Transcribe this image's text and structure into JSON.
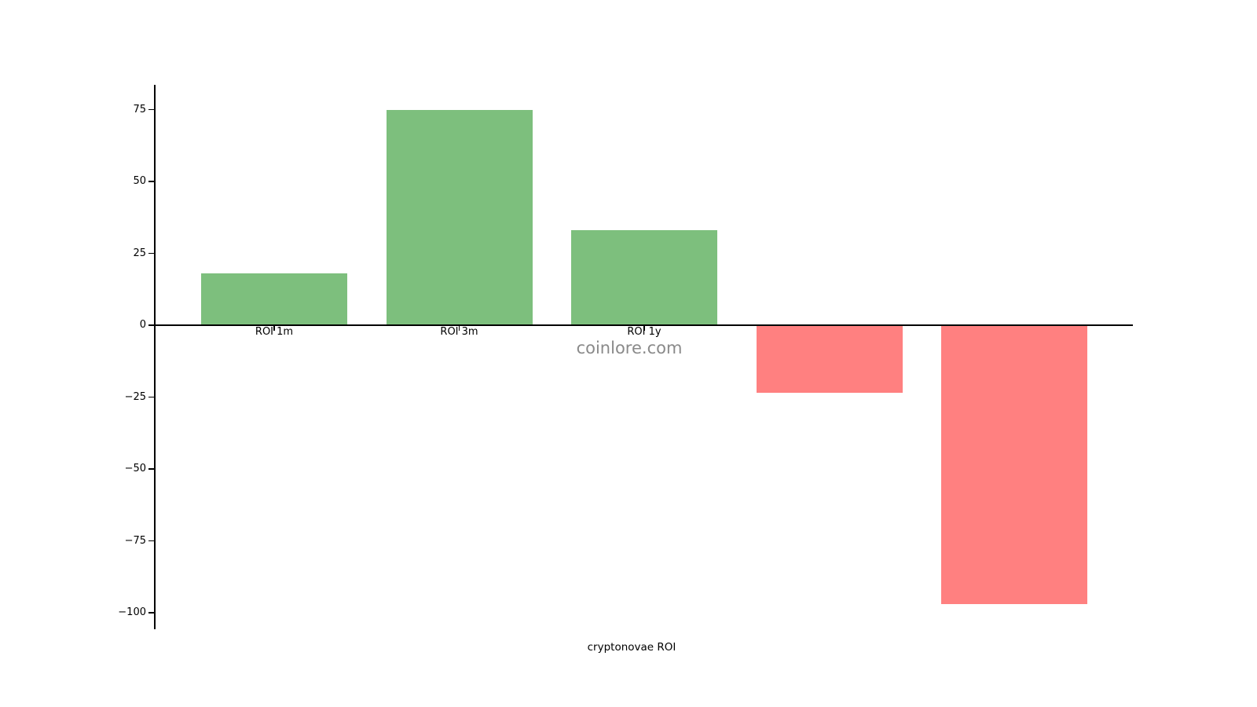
{
  "page": {
    "background": "#ffffff"
  },
  "watermark": {
    "text": "coinlore.com",
    "color": "#8a8a8a"
  },
  "chart_data": {
    "type": "bar",
    "title": "cryptonovae ROI",
    "categories": [
      "ROI 1m",
      "ROI 3m",
      "ROI 1y",
      "",
      ""
    ],
    "values": [
      18,
      75,
      33,
      -23.5,
      -97
    ],
    "yticks": [
      75,
      50,
      25,
      0,
      -25,
      -50,
      -75,
      -100
    ],
    "ylim": [
      -105.6,
      83.6
    ],
    "xlabel": "",
    "ylabel": "",
    "grid": false,
    "legend_position": "none",
    "colors": {
      "positive_bar": "#7dbf7d",
      "negative_bar": "#ff8080",
      "axis": "#000000",
      "tick_label": "#000000"
    }
  }
}
